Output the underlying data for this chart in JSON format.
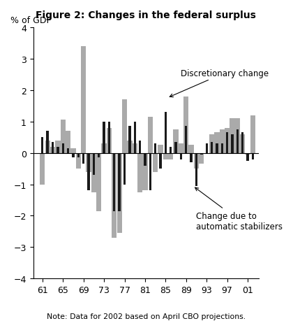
{
  "title": "Figure 2: Changes in the federal surplus",
  "ylabel": "% of GDP",
  "note": "Note: Data for 2002 based on April CBO projections.",
  "ylim": [
    -4,
    4
  ],
  "yticks": [
    -4,
    -3,
    -2,
    -1,
    0,
    1,
    2,
    3,
    4
  ],
  "xtick_labels": [
    "61",
    "65",
    "69",
    "73",
    "77",
    "81",
    "85",
    "89",
    "93",
    "97",
    "01"
  ],
  "xtick_positions": [
    1961,
    1965,
    1969,
    1973,
    1977,
    1981,
    1985,
    1989,
    1993,
    1997,
    2001
  ],
  "years": [
    1961,
    1962,
    1963,
    1964,
    1965,
    1966,
    1967,
    1968,
    1969,
    1970,
    1971,
    1972,
    1973,
    1974,
    1975,
    1976,
    1977,
    1978,
    1979,
    1980,
    1981,
    1982,
    1983,
    1984,
    1985,
    1986,
    1987,
    1988,
    1989,
    1990,
    1991,
    1992,
    1993,
    1994,
    1995,
    1996,
    1997,
    1998,
    1999,
    2000,
    2001,
    2002
  ],
  "discretionary_gray": [
    -1.0,
    0.4,
    0.2,
    0.4,
    1.05,
    0.7,
    0.15,
    -0.5,
    3.4,
    -0.6,
    -1.25,
    -1.85,
    0.3,
    0.8,
    -2.7,
    -2.55,
    1.7,
    0.4,
    0.3,
    -1.25,
    -1.2,
    1.15,
    -0.6,
    0.25,
    -0.2,
    -0.2,
    0.75,
    0.3,
    1.8,
    0.25,
    -0.5,
    -0.35,
    0.0,
    0.6,
    0.65,
    0.75,
    0.8,
    1.1,
    1.1,
    0.6,
    -0.05,
    1.2
  ],
  "automatic_black": [
    0.5,
    0.7,
    0.35,
    0.2,
    0.3,
    0.15,
    -0.15,
    -0.15,
    -0.35,
    -1.2,
    -0.7,
    -0.15,
    1.0,
    1.0,
    -1.85,
    -1.85,
    -1.0,
    0.85,
    1.0,
    0.4,
    -0.4,
    -1.2,
    0.3,
    -0.5,
    1.3,
    0.2,
    0.35,
    -0.2,
    0.85,
    -0.3,
    -1.05,
    -0.05,
    0.3,
    0.35,
    0.3,
    0.3,
    0.65,
    0.6,
    0.75,
    0.65,
    -0.25,
    -0.2
  ],
  "disc_color": "#aaaaaa",
  "auto_color": "#1a1a1a",
  "annotation_disc_text": "Discretionary change",
  "annotation_auto_text": "Change due to\nautomatic stabilizers",
  "background_color": "#ffffff",
  "bar_width": 0.45
}
